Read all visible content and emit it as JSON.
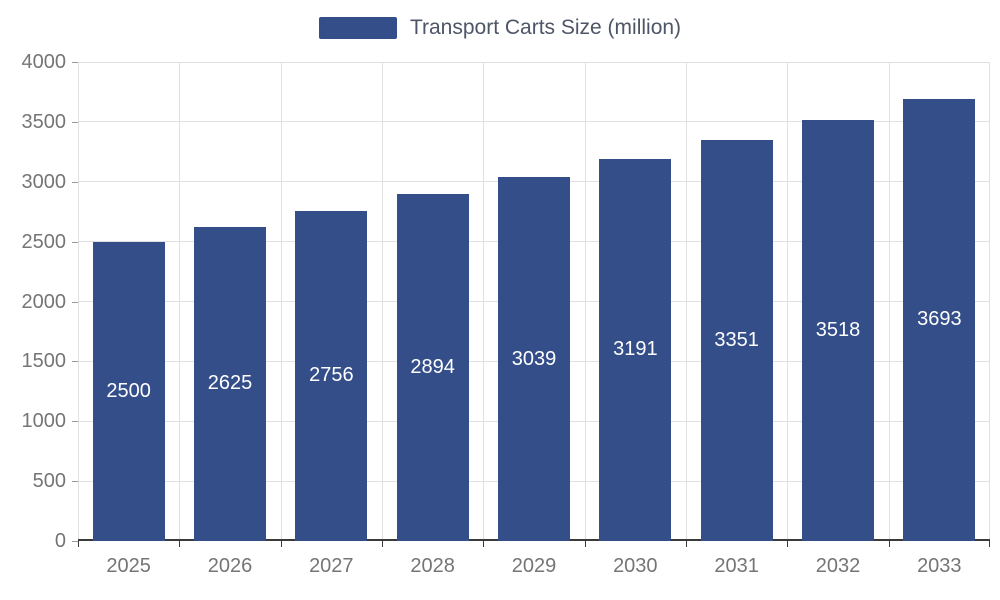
{
  "chart_data": {
    "type": "bar",
    "title": "Transport Carts Size (million)",
    "categories": [
      "2025",
      "2026",
      "2027",
      "2028",
      "2029",
      "2030",
      "2031",
      "2032",
      "2033"
    ],
    "values": [
      2500,
      2625,
      2756,
      2894,
      3039,
      3191,
      3351,
      3518,
      3693
    ],
    "xlabel": "",
    "ylabel": "",
    "ylim": [
      0,
      4000
    ],
    "yticks": [
      0,
      500,
      1000,
      1500,
      2000,
      2500,
      3000,
      3500,
      4000
    ],
    "grid": true,
    "legend_position": "top-center",
    "bar_color": "#344e8a",
    "value_label_color": "#ffffff",
    "axis_label_color": "#757575",
    "grid_color": "#e0e0e0",
    "title_color": "#4d5566"
  }
}
